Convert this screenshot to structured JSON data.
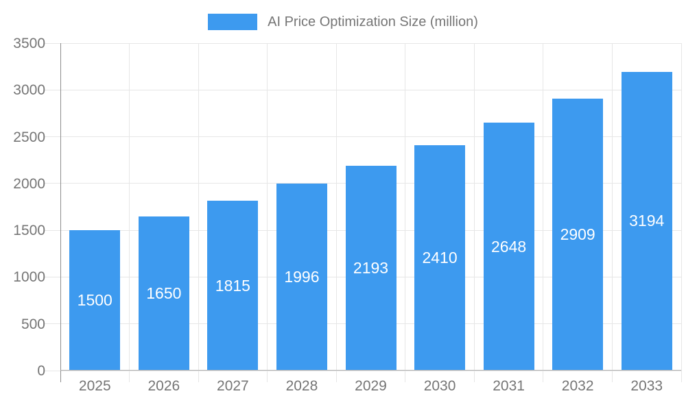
{
  "legend": {
    "label": "AI Price Optimization Size (million)"
  },
  "colors": {
    "bar": "#3D9AEF",
    "grid": "#E6E6E6",
    "y_axis_line": "#8C8C8C",
    "x_axis_line": "#B3B3B3",
    "tick": "#E6E6E6",
    "axis_label": "#757575",
    "bar_label": "#FFFFFF",
    "background": "#FFFFFF"
  },
  "chart_data": {
    "type": "bar",
    "title": "",
    "legend_label": "AI Price Optimization Size (million)",
    "legend_position": "top-center",
    "categories": [
      "2025",
      "2026",
      "2027",
      "2028",
      "2029",
      "2030",
      "2031",
      "2032",
      "2033"
    ],
    "values": [
      1500,
      1650,
      1815,
      1996,
      2193,
      2410,
      2648,
      2909,
      3194
    ],
    "bar_labels": [
      "1500",
      "1650",
      "1815",
      "1996",
      "2193",
      "2410",
      "2648",
      "2909",
      "3194"
    ],
    "bar_labels_position": "center-inside",
    "xlabel": "",
    "ylabel": "",
    "ylim": [
      0,
      3500
    ],
    "ytick_step": 500,
    "yticks": [
      "0",
      "500",
      "1000",
      "1500",
      "2000",
      "2500",
      "3000",
      "3500"
    ],
    "grid": true
  }
}
